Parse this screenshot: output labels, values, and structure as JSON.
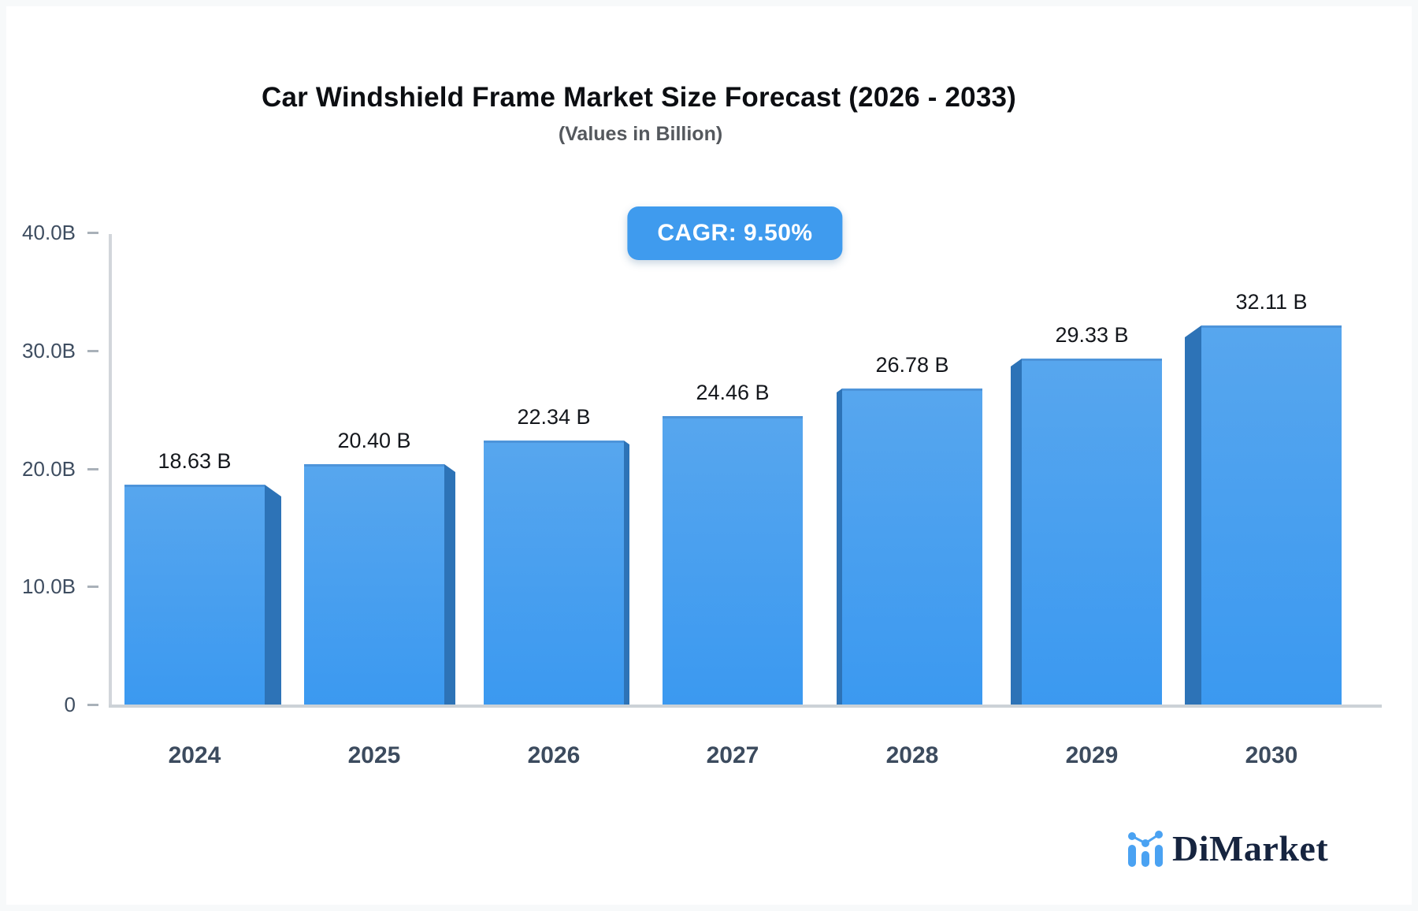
{
  "page": {
    "background_color": "#f7f9fa",
    "card_background_color": "#ffffff"
  },
  "header": {
    "title": "Car Windshield Frame Market Size Forecast (2026 - 2033)",
    "subtitle": "(Values in Billion)",
    "cagr_label": "CAGR: 9.50%"
  },
  "chart_data": {
    "type": "bar",
    "title": "Car Windshield Frame Market Size Forecast (2026 - 2033)",
    "subtitle": "(Values in Billion)",
    "cagr_percent": "9.50%",
    "unit": "Billion",
    "categories": [
      "2024",
      "2025",
      "2026",
      "2027",
      "2028",
      "2029",
      "2030"
    ],
    "values": [
      18.63,
      20.4,
      22.34,
      24.46,
      26.78,
      29.33,
      32.11
    ],
    "value_labels": [
      "18.63 B",
      "20.40 B",
      "22.34 B",
      "24.46 B",
      "26.78 B",
      "29.33 B",
      "32.11 B"
    ],
    "ylim": [
      0,
      40
    ],
    "y_tick_values": [
      40,
      30,
      20,
      10,
      0
    ],
    "y_tick_labels": [
      "40.0B",
      "30.0B",
      "20.0B",
      "10.0B",
      "0"
    ],
    "grid": false,
    "legend": false,
    "colors": {
      "bar_face_top": "#57a6ee",
      "bar_face_bottom": "#3b99f0",
      "bar_side": "#2d73b7",
      "bar_top_edge": "#4d94da",
      "accent": "#3f9bee",
      "axis": "#d2d6db",
      "text": "#3e4d60"
    }
  },
  "branding": {
    "logo_text": "DiMarket",
    "logo_icon": "mini-bar-chart-with-trend-dots",
    "logo_text_color": "#16243f",
    "logo_icon_color": "#4aa2f2"
  }
}
